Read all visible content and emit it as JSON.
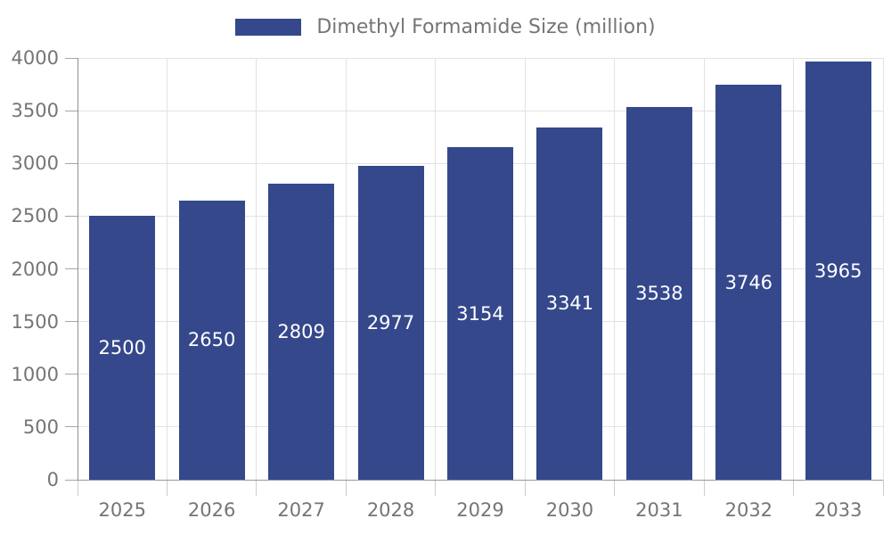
{
  "legend": {
    "position": "top"
  },
  "chart_data": {
    "type": "bar",
    "title": "Dimethyl Formamide Size (million)",
    "categories": [
      "2025",
      "2026",
      "2027",
      "2028",
      "2029",
      "2030",
      "2031",
      "2032",
      "2033"
    ],
    "series": [
      {
        "name": "Dimethyl Formamide Size (million)",
        "values": [
          2500,
          2650,
          2809,
          2977,
          3154,
          3341,
          3538,
          3746,
          3965
        ]
      }
    ],
    "xlabel": "",
    "ylabel": "",
    "ylim": [
      0,
      4000
    ],
    "y_ticks": [
      0,
      500,
      1000,
      1500,
      2000,
      2500,
      3000,
      3500,
      4000
    ],
    "grid": true,
    "legend_position": "top",
    "bar_color": "#35488C",
    "bar_label_color": "#ffffff",
    "axis_text_color": "#757575",
    "grid_color": "#e2e2e2",
    "bar_labels_inside": "center"
  }
}
